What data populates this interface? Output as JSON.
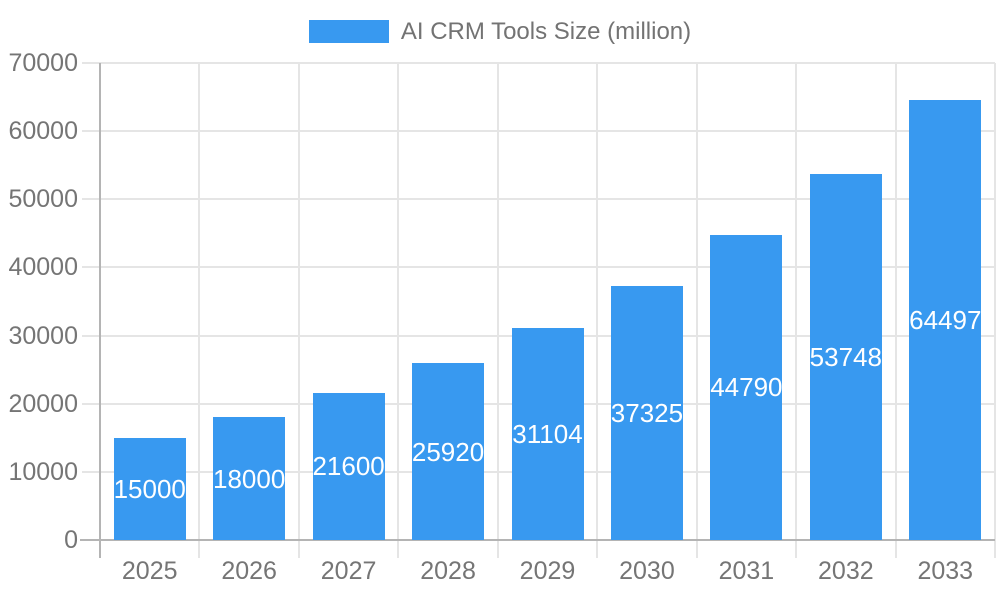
{
  "chart_data": {
    "type": "bar",
    "title": "AI CRM Tools Size (million)",
    "legend": {
      "label": "AI CRM Tools Size (million)",
      "position": "top"
    },
    "categories": [
      "2025",
      "2026",
      "2027",
      "2028",
      "2029",
      "2030",
      "2031",
      "2032",
      "2033"
    ],
    "values": [
      15000,
      18000,
      21600,
      25920,
      31104,
      37325,
      44790,
      53748,
      64497
    ],
    "value_labels": [
      "15000",
      "18000",
      "21600",
      "25920",
      "31104",
      "37325",
      "44790",
      "53748",
      "64497"
    ],
    "xlabel": "",
    "ylabel": "",
    "ylim": [
      0,
      70000
    ],
    "yticks": [
      0,
      10000,
      20000,
      30000,
      40000,
      50000,
      60000,
      70000
    ],
    "grid": true,
    "colors": {
      "bar": "#3899f0",
      "bar_value_text": "#ffffff",
      "axis_text": "#757575",
      "legend_text": "#737373",
      "gridline": "#e5e5e5",
      "axis_line": "#b4b4b4",
      "background": "#ffffff"
    }
  }
}
